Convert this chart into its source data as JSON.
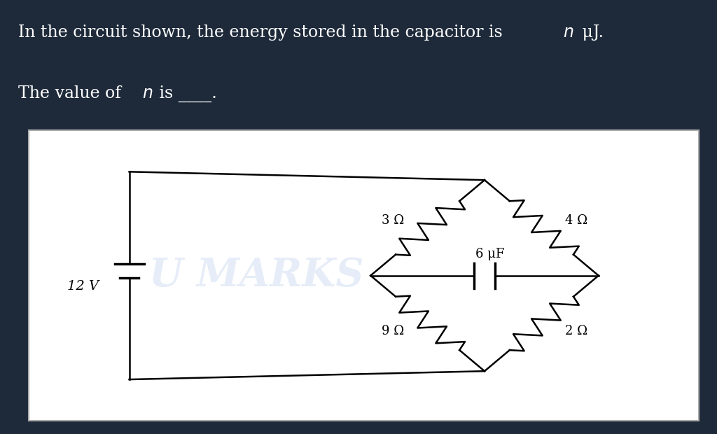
{
  "bg_color": "#1e2a3a",
  "panel_color": "#ffffff",
  "text_color": "#ffffff",
  "circuit_color": "#000000",
  "watermark": "U MARKS",
  "watermark_color": "#c8d8f0",
  "voltage_label": "12 V",
  "resistor_labels": [
    "3 Ω",
    "4 Ω",
    "9 Ω",
    "2 Ω"
  ],
  "capacitor_label": "6 μF",
  "font_size_title": 17,
  "font_size_labels": 13
}
